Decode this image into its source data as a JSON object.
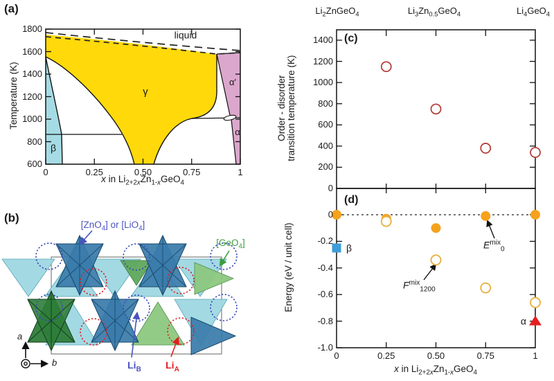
{
  "colors": {
    "gamma_yellow": "#ffd90a",
    "beta_cyan": "#a5dbe4",
    "alpha_pink": "#dba7cc",
    "tetra_dark_blue": "#3a7cab",
    "tetra_light_cyan": "#9ed7e1",
    "tetra_light_green": "#8cc87e",
    "tetra_dark_green": "#2e7d3a",
    "open_red_circle": "#b5413c",
    "filled_orange": "#f6a21c",
    "open_orange": "#e8b54a",
    "beta_square_blue": "#3e9cd9",
    "alpha_triangle_red": "#e41e20",
    "blue_label": "#4a54c0",
    "green_label": "#3b9e3f",
    "red_label": "#e02020"
  },
  "panels": {
    "a": {
      "label": "(a)",
      "ylabel": "Temperature (K)",
      "xlabel_html": "<i>x</i> in Li<sub>2+2<i>x</i></sub>Zn<sub>1-<i>x</i></sub>GeO<sub>4</sub>",
      "yticks": [
        {
          "label": "1800",
          "value": 1800
        },
        {
          "label": "1600",
          "value": 1600
        },
        {
          "label": "1400",
          "value": 1400
        },
        {
          "label": "1200",
          "value": 1200
        },
        {
          "label": "1000",
          "value": 1000
        },
        {
          "label": "800",
          "value": 800
        },
        {
          "label": "600",
          "value": 600
        }
      ],
      "xticks": [
        {
          "label": "0",
          "value": 0
        },
        {
          "label": "0.25",
          "value": 0.25
        },
        {
          "label": "0.50",
          "value": 0.5
        },
        {
          "label": "0.75",
          "value": 0.75
        },
        {
          "label": "1",
          "value": 1
        }
      ],
      "regions": {
        "liquid": "liquid",
        "gamma": "γ",
        "beta": "β",
        "alpha_prime": "α'",
        "alpha": "α"
      }
    },
    "b": {
      "label": "(b)",
      "zno4_label_html": "[ZnO<sub>4</sub>] or [LiO<sub>4</sub>]",
      "geo4_label_html": "[GeO<sub>4</sub>]",
      "liB_label_html": "Li<sub>B</sub>",
      "liA_label_html": "Li<sub>A</sub>",
      "axis_a": "a",
      "axis_b": "b"
    },
    "c": {
      "label": "(c)",
      "ylabel_line1": "Order - disorder",
      "ylabel_line2": "transition temperature (K)",
      "top_formulas_html": [
        "Li<sub>2</sub>ZnGeO<sub>4</sub>",
        "Li<sub>3</sub>Zn<sub>0.5</sub>GeO<sub>4</sub>",
        "Li<sub>4</sub>GeO<sub>4</sub>"
      ],
      "yticks": [
        {
          "label": "1400",
          "value": 1400
        },
        {
          "label": "1200",
          "value": 1200
        },
        {
          "label": "1000",
          "value": 1000
        },
        {
          "label": "800",
          "value": 800
        },
        {
          "label": "600",
          "value": 600
        },
        {
          "label": "400",
          "value": 400
        },
        {
          "label": "200",
          "value": 200
        },
        {
          "label": "0",
          "value": 0
        }
      ]
    },
    "d": {
      "label": "(d)",
      "ylabel": "Energy (eV / unit cell)",
      "xlabel_html": "<i>x</i> in Li<sub>2+2<i>x</i></sub>Zn<sub>1-<i>x</i></sub>GeO<sub>4</sub>",
      "yticks": [
        {
          "label": "0",
          "value": 0
        },
        {
          "label": "-0.2",
          "value": -0.2
        },
        {
          "label": "-0.4",
          "value": -0.4
        },
        {
          "label": "-0.6",
          "value": -0.6
        },
        {
          "label": "-0.8",
          "value": -0.8
        },
        {
          "label": "-1.0",
          "value": -1.0
        }
      ],
      "xticks": [
        {
          "label": "0",
          "value": 0
        },
        {
          "label": "0.25",
          "value": 0.25
        },
        {
          "label": "0.50",
          "value": 0.5
        },
        {
          "label": "0.75",
          "value": 0.75
        },
        {
          "label": "1",
          "value": 1
        }
      ],
      "e_label_html": "<i>E</i><sup>mix</sup><sub>0</sub>",
      "f_label_html": "<i>F</i><sup>mix</sup><sub>1200</sub>",
      "beta_label": "β",
      "alpha_label": "α"
    }
  },
  "chart_data": [
    {
      "panel": "a",
      "type": "area",
      "title": "Li2+2xZn1-xGeO4 phase diagram",
      "xlabel": "x in Li2+2xZn1-xGeO4",
      "ylabel": "Temperature (K)",
      "xlim": [
        0,
        1
      ],
      "ylim": [
        600,
        1850
      ],
      "regions": [
        {
          "name": "liquid",
          "label": "liquid",
          "color": "#ffffff",
          "label_at": {
            "x": 0.72,
            "T": 1745
          }
        },
        {
          "name": "gamma",
          "label": "γ",
          "color": "#ffd90a",
          "label_at": {
            "x": 0.51,
            "T": 1240
          }
        },
        {
          "name": "beta",
          "label": "β",
          "color": "#a5dbe4",
          "label_at": {
            "x": 0.035,
            "T": 720
          }
        },
        {
          "name": "alpha_prime",
          "label": "α'",
          "color": "#dba7cc",
          "label_at": {
            "x": 0.955,
            "T": 1330
          }
        },
        {
          "name": "alpha",
          "label": "α",
          "color": "#dba7cc",
          "label_at": {
            "x": 0.985,
            "T": 880
          }
        }
      ],
      "boundaries": {
        "liquidus_K": [
          [
            0,
            1765
          ],
          [
            1,
            1600
          ]
        ],
        "solidus_K": [
          [
            0,
            1745
          ],
          [
            0.88,
            1580
          ]
        ],
        "beta_top_K": 1555,
        "horizontal_line_low_K": 865,
        "horizontal_line_high_K": 1005,
        "gamma_bottom_reaches_600K_between_x": [
          0.455,
          0.55
        ]
      }
    },
    {
      "panel": "c",
      "type": "scatter",
      "series_name": "order-disorder transition temperature",
      "marker": "open-circle",
      "marker_color": "#b5413c",
      "x": [
        0.25,
        0.5,
        0.75,
        1
      ],
      "y": [
        1150,
        750,
        380,
        340
      ],
      "ylabel": "Order - disorder transition temperature (K)",
      "xlim": [
        0,
        1
      ],
      "ylim": [
        0,
        1500
      ],
      "top_axis_labels": [
        "Li2ZnGeO4",
        "Li3Zn0.5GeO4",
        "Li4GeO4"
      ],
      "top_axis_label_x": [
        0,
        0.5,
        1
      ]
    },
    {
      "panel": "d",
      "type": "scatter",
      "ylabel": "Energy (eV / unit cell)",
      "xlabel": "x in Li2+2xZn1-xGeO4",
      "xlim": [
        0,
        1
      ],
      "ylim": [
        -1.0,
        0.2
      ],
      "zero_line_dashed": true,
      "series": [
        {
          "name": "E0_mix",
          "label": "E^mix_0",
          "marker": "filled-circle",
          "color": "#f6a21c",
          "x": [
            0,
            0.25,
            0.5,
            0.75,
            1
          ],
          "y": [
            0,
            -0.03,
            -0.1,
            -0.01,
            0
          ]
        },
        {
          "name": "F1200_mix",
          "label": "F^mix_1200",
          "marker": "open-circle",
          "color": "#e8b54a",
          "x": [
            0.25,
            0.5,
            0.75,
            1
          ],
          "y": [
            -0.05,
            -0.34,
            -0.55,
            -0.66
          ]
        },
        {
          "name": "beta_phase",
          "label": "β",
          "marker": "filled-square",
          "color": "#3e9cd9",
          "x": [
            0
          ],
          "y": [
            -0.25
          ]
        },
        {
          "name": "alpha_phase",
          "label": "α",
          "marker": "filled-triangle",
          "color": "#e41e20",
          "x": [
            1
          ],
          "y": [
            -0.8
          ]
        }
      ]
    }
  ]
}
